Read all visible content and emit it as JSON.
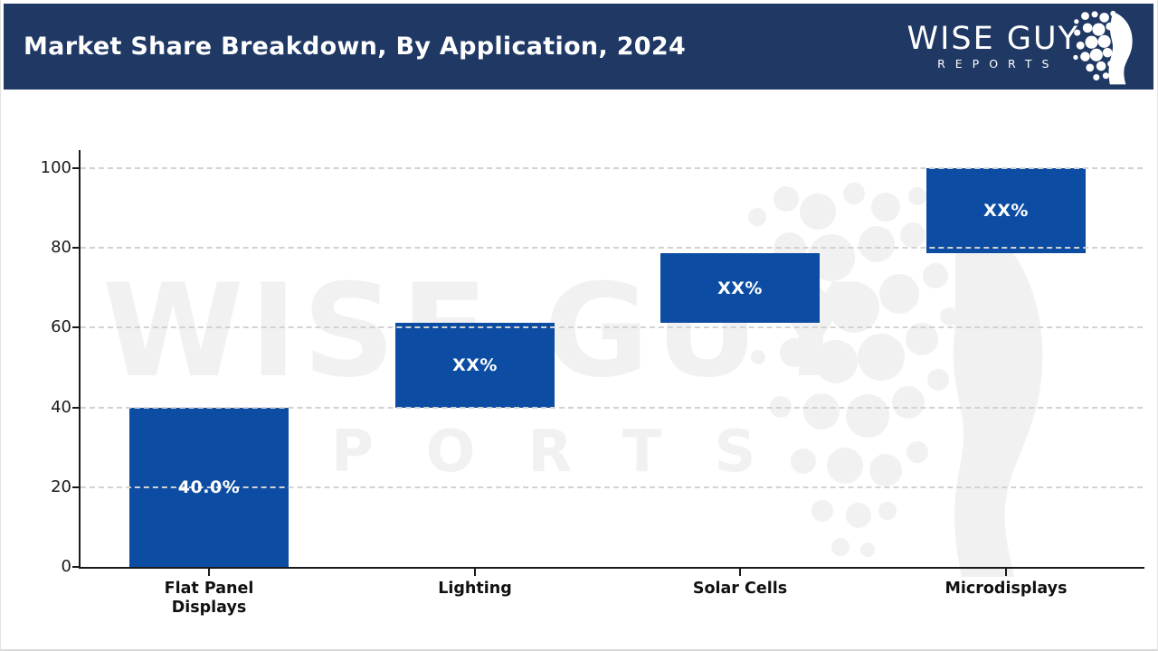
{
  "header": {
    "title": "Market Share Breakdown, By Application, 2024",
    "logo": {
      "brand_top": "WISE GUY",
      "brand_bottom": "REPORTS"
    }
  },
  "watermark": {
    "line1": "WISE GUY",
    "line2": "REPORTS"
  },
  "colors": {
    "header_bg": "#1f3864",
    "bar": "#0c4ca3",
    "grid": "#d2d2d2",
    "axis": "#1a1a1a",
    "bar_label_text": "#ffffff",
    "watermark": "#f1f1f1"
  },
  "chart_data": {
    "type": "bar",
    "subtype": "waterfall",
    "title": "Market Share Breakdown, By Application, 2024",
    "categories": [
      "Flat Panel\nDisplays",
      "Lighting",
      "Solar Cells",
      "Microdisplays"
    ],
    "segments": [
      {
        "category": "Flat Panel Displays",
        "start": 0,
        "end": 40,
        "label": "40.0%"
      },
      {
        "category": "Lighting",
        "start": 40,
        "end": 61.3,
        "label": "XX%"
      },
      {
        "category": "Solar Cells",
        "start": 61.3,
        "end": 78.6,
        "label": "XX%"
      },
      {
        "category": "Microdisplays",
        "start": 78.6,
        "end": 100,
        "label": "XX%"
      }
    ],
    "ylim": [
      0,
      100
    ],
    "yticks": [
      0,
      20,
      40,
      60,
      80,
      100
    ],
    "yticklabels": [
      "0",
      "20",
      "40",
      "60",
      "80",
      "100"
    ],
    "grid": "horizontal dashed",
    "legend": "none",
    "value_suffix": "%"
  }
}
